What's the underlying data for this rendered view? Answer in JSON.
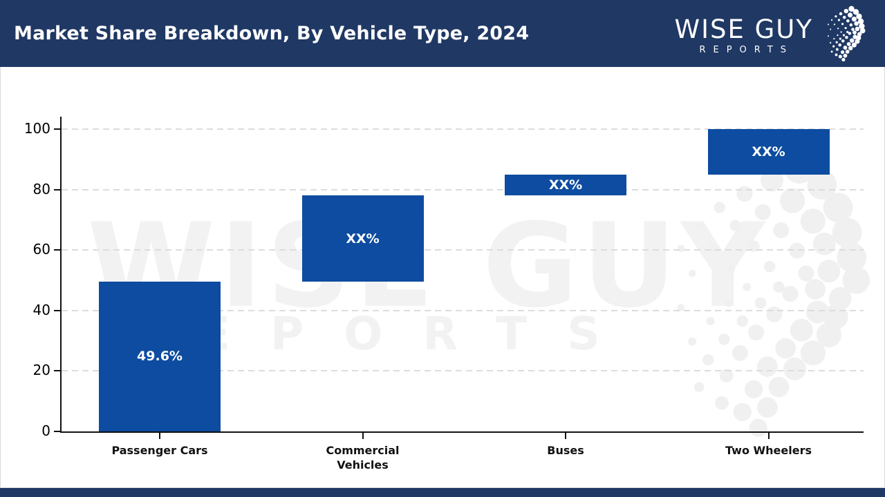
{
  "header": {
    "title": "Market Share Breakdown, By Vehicle Type, 2024",
    "bg_color": "#1f3864",
    "logo": {
      "line1": "WISE GUY",
      "line2": "REPORTS"
    }
  },
  "watermark": {
    "line1": "WISE GUY",
    "line2": "REPORTS"
  },
  "footer": {
    "bg_color": "#1f3864"
  },
  "chart_data": {
    "type": "bar",
    "subtype": "waterfall",
    "title": "Market Share Breakdown, By Vehicle Type, 2024",
    "categories": [
      "Passenger Cars",
      "Commercial\nVehicles",
      "Buses",
      "Two Wheelers"
    ],
    "segments": [
      {
        "label": "49.6%",
        "start": 0,
        "end": 49.6
      },
      {
        "label": "XX%",
        "start": 49.6,
        "end": 78
      },
      {
        "label": "XX%",
        "start": 78,
        "end": 85
      },
      {
        "label": "XX%",
        "start": 85,
        "end": 100
      }
    ],
    "values": [
      49.6,
      28.4,
      7,
      15
    ],
    "yticks": [
      0,
      20,
      40,
      60,
      80,
      100
    ],
    "ylim": [
      0,
      104
    ],
    "grid": "horizontal-dashed",
    "legend": "none",
    "bar_color": "#0d4ca0",
    "label_color": "#ffffff",
    "axis_color": "#111111"
  }
}
